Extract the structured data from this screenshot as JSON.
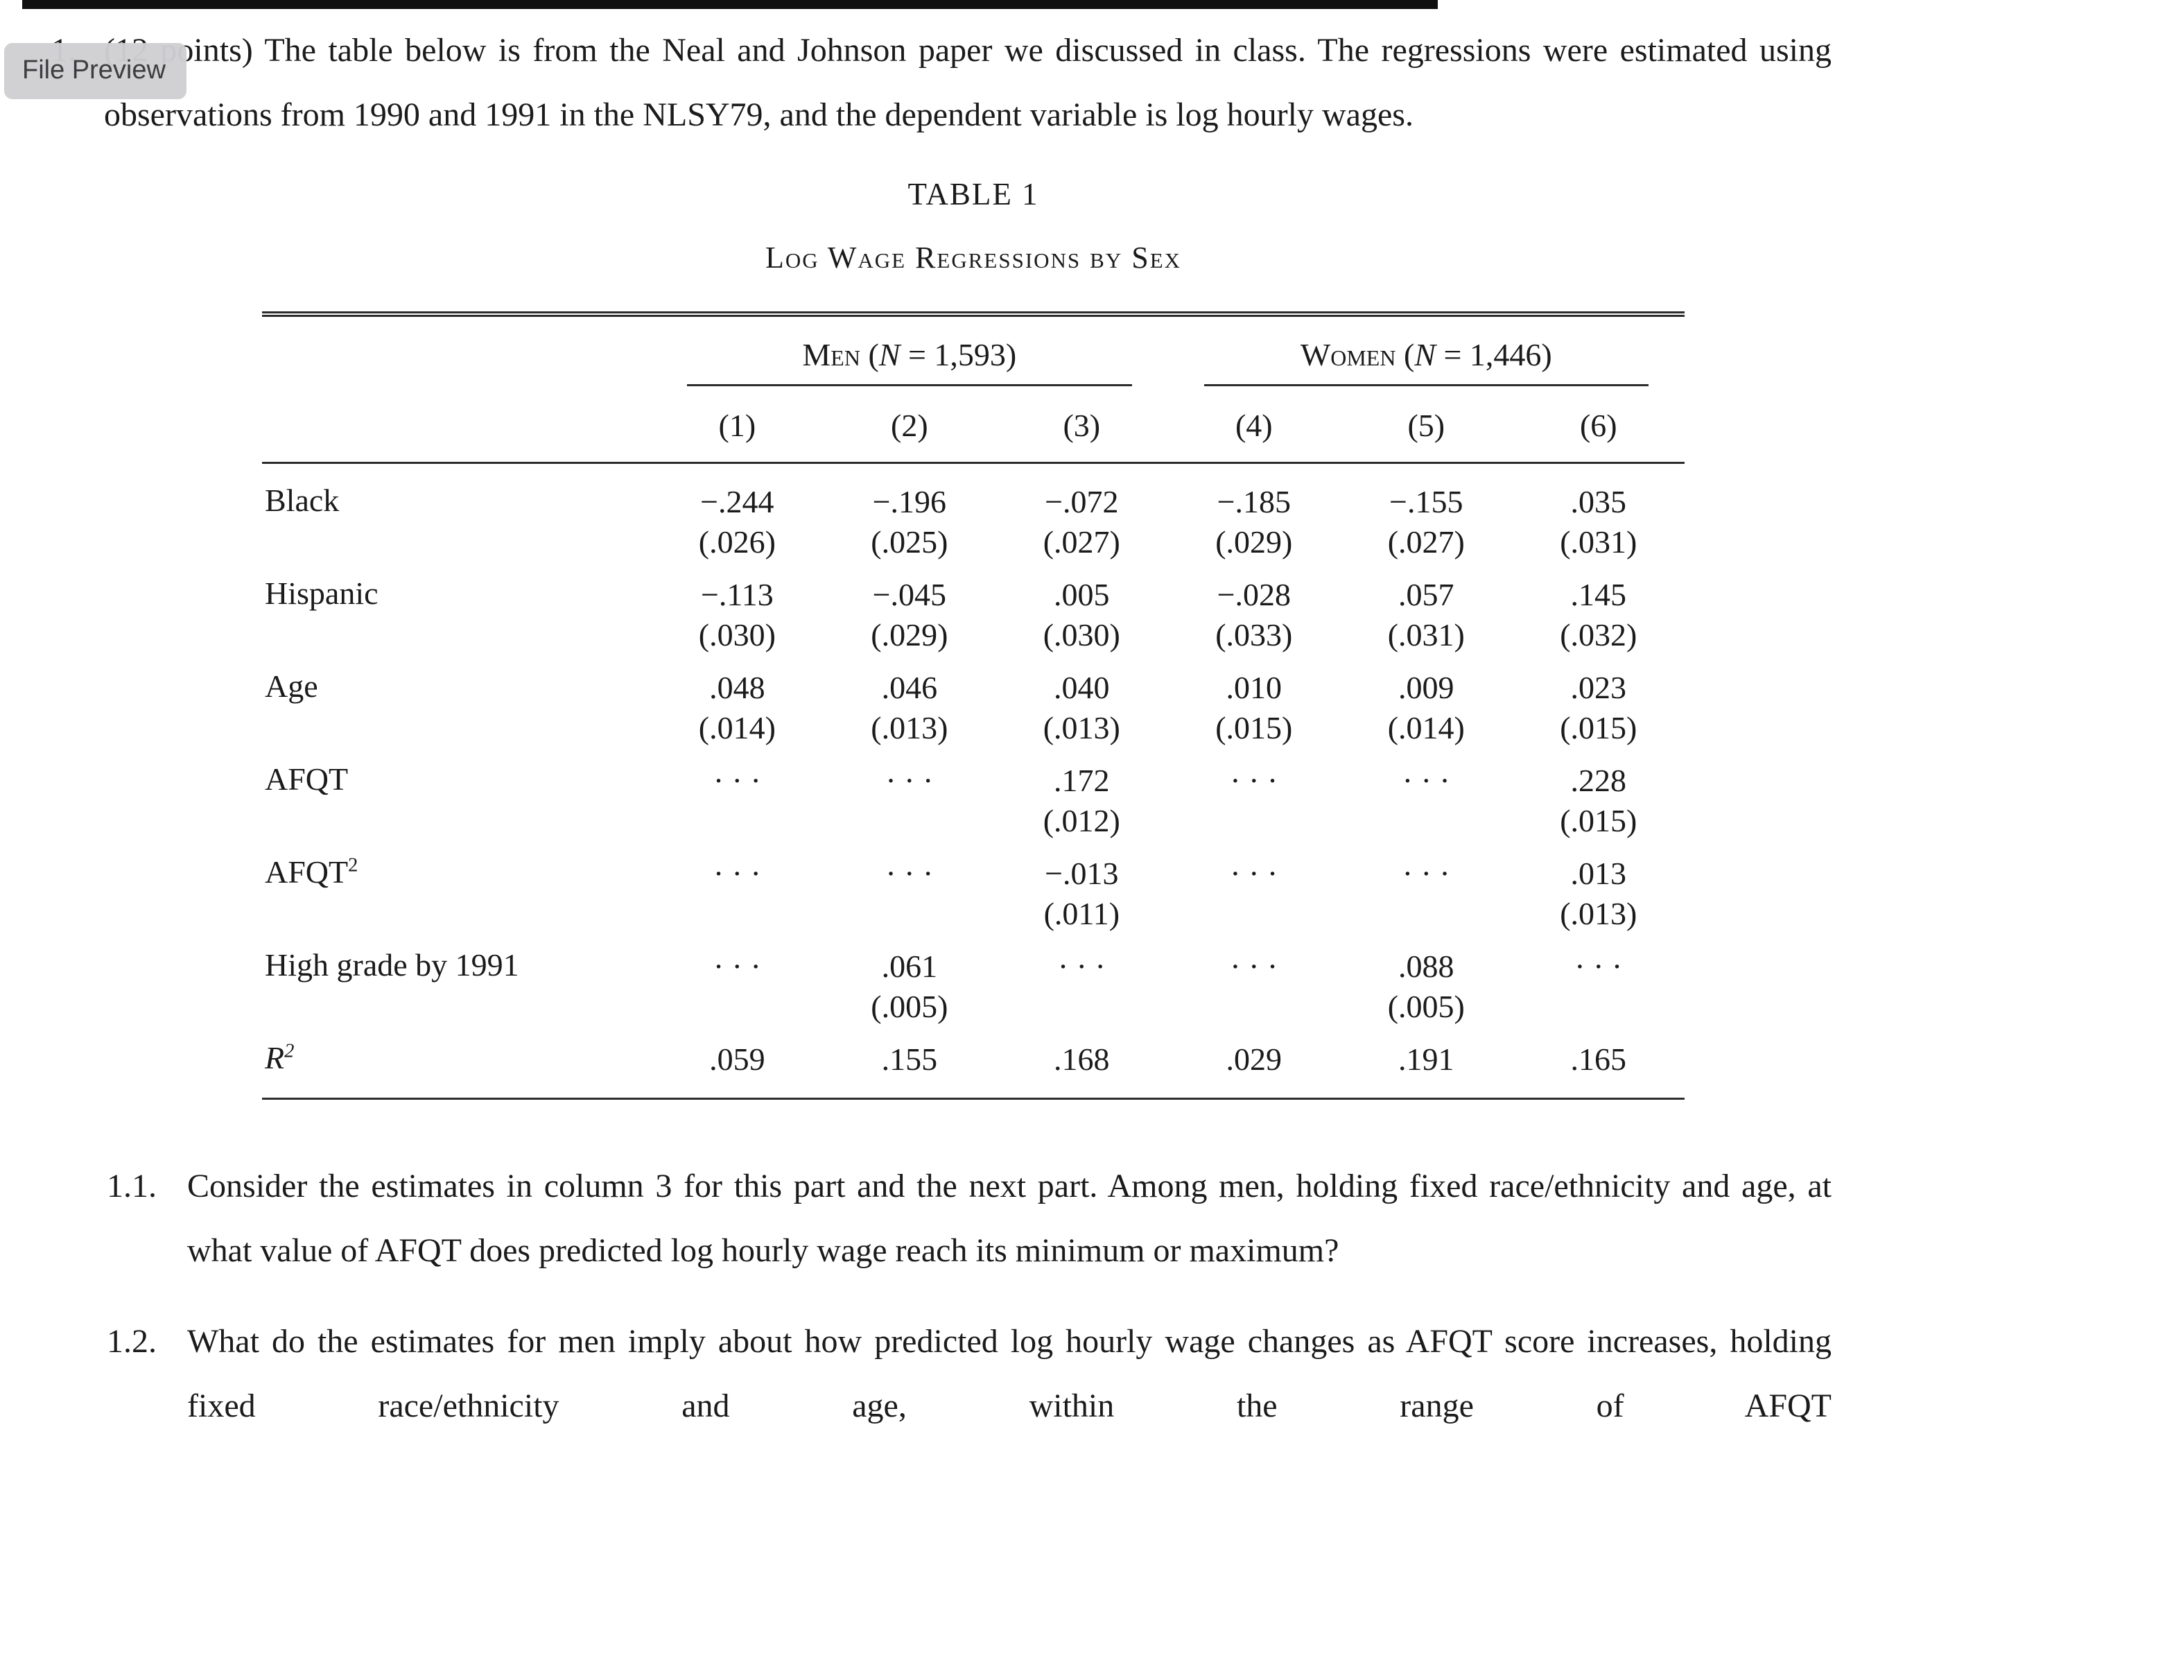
{
  "viewer": {
    "tooltip": "File Preview"
  },
  "problem": {
    "number": "1.",
    "intro": "(12 points) The table below is from the Neal and Johnson paper we discussed in class.  The regressions were estimated using observations from 1990 and 1991 in the NLSY79, and the dependent variable is log hourly wages."
  },
  "table": {
    "title": "TABLE 1",
    "subtitle": "Log Wage Regressions by Sex",
    "groups": [
      {
        "name": "Men",
        "open": " (",
        "n": "N",
        "rest": " = 1,593)"
      },
      {
        "name": "Women",
        "open": " (",
        "n": "N",
        "rest": " = 1,446)"
      }
    ],
    "column_numbers": [
      "(1)",
      "(2)",
      "(3)",
      "(4)",
      "(5)",
      "(6)"
    ],
    "rows": [
      {
        "label": "Black",
        "sup": "",
        "italic": false,
        "cells": [
          {
            "v": "−.244",
            "se": "(.026)"
          },
          {
            "v": "−.196",
            "se": "(.025)"
          },
          {
            "v": "−.072",
            "se": "(.027)"
          },
          {
            "v": "−.185",
            "se": "(.029)"
          },
          {
            "v": "−.155",
            "se": "(.027)"
          },
          {
            "v": ".035",
            "se": "(.031)"
          }
        ]
      },
      {
        "label": "Hispanic",
        "sup": "",
        "italic": false,
        "cells": [
          {
            "v": "−.113",
            "se": "(.030)"
          },
          {
            "v": "−.045",
            "se": "(.029)"
          },
          {
            "v": ".005",
            "se": "(.030)"
          },
          {
            "v": "−.028",
            "se": "(.033)"
          },
          {
            "v": ".057",
            "se": "(.031)"
          },
          {
            "v": ".145",
            "se": "(.032)"
          }
        ]
      },
      {
        "label": "Age",
        "sup": "",
        "italic": false,
        "cells": [
          {
            "v": ".048",
            "se": "(.014)"
          },
          {
            "v": ".046",
            "se": "(.013)"
          },
          {
            "v": ".040",
            "se": "(.013)"
          },
          {
            "v": ".010",
            "se": "(.015)"
          },
          {
            "v": ".009",
            "se": "(.014)"
          },
          {
            "v": ".023",
            "se": "(.015)"
          }
        ]
      },
      {
        "label": "AFQT",
        "sup": "",
        "italic": false,
        "cells": [
          {
            "v": "· · ·",
            "se": ""
          },
          {
            "v": "· · ·",
            "se": ""
          },
          {
            "v": ".172",
            "se": "(.012)"
          },
          {
            "v": "· · ·",
            "se": ""
          },
          {
            "v": "· · ·",
            "se": ""
          },
          {
            "v": ".228",
            "se": "(.015)"
          }
        ]
      },
      {
        "label": "AFQT",
        "sup": "2",
        "italic": false,
        "cells": [
          {
            "v": "· · ·",
            "se": ""
          },
          {
            "v": "· · ·",
            "se": ""
          },
          {
            "v": "−.013",
            "se": "(.011)"
          },
          {
            "v": "· · ·",
            "se": ""
          },
          {
            "v": "· · ·",
            "se": ""
          },
          {
            "v": ".013",
            "se": "(.013)"
          }
        ]
      },
      {
        "label": "High grade by 1991",
        "sup": "",
        "italic": false,
        "cells": [
          {
            "v": "· · ·",
            "se": ""
          },
          {
            "v": ".061",
            "se": "(.005)"
          },
          {
            "v": "· · ·",
            "se": ""
          },
          {
            "v": "· · ·",
            "se": ""
          },
          {
            "v": ".088",
            "se": "(.005)"
          },
          {
            "v": "· · ·",
            "se": ""
          }
        ]
      },
      {
        "label": "R",
        "sup": "2",
        "italic": true,
        "cells": [
          {
            "v": ".059",
            "se": ""
          },
          {
            "v": ".155",
            "se": ""
          },
          {
            "v": ".168",
            "se": ""
          },
          {
            "v": ".029",
            "se": ""
          },
          {
            "v": ".191",
            "se": ""
          },
          {
            "v": ".165",
            "se": ""
          }
        ]
      }
    ]
  },
  "questions": [
    {
      "number": "1.1.",
      "text": "Consider the estimates in column 3 for this part and the next part.  Among men, holding fixed race/ethnicity and age, at what value of AFQT does predicted log hourly wage reach its minimum or maximum?"
    },
    {
      "number": "1.2.",
      "text": "What do the estimates for men imply about how predicted log hourly wage changes as AFQT score increases, holding fixed race/ethnicity and age, within the range of AFQT"
    }
  ]
}
